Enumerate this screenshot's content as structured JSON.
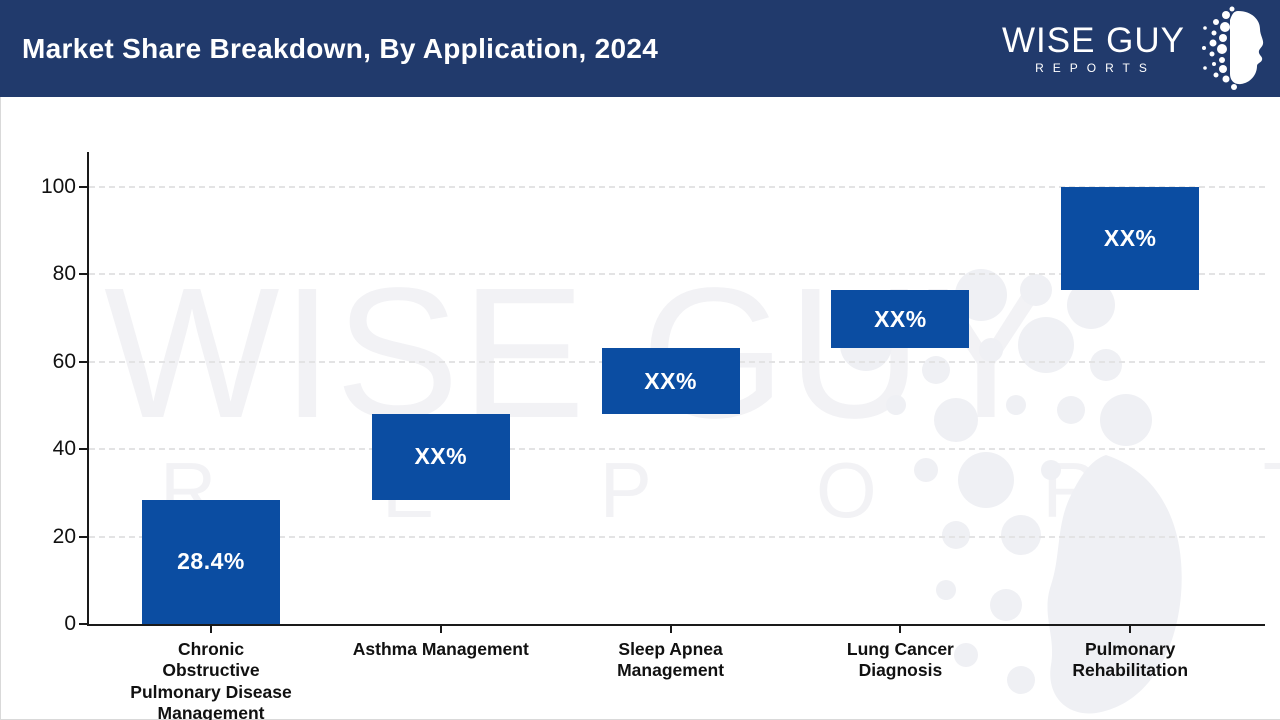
{
  "header": {
    "title": "Market Share Breakdown, By Application, 2024",
    "logo": {
      "line1": "WISE GUY",
      "line2": "REPORTS"
    }
  },
  "watermark": {
    "line1": "WISE GUY",
    "line2": "R E P O R T S"
  },
  "colors": {
    "header_background": "#213a6c",
    "bar_blue": "#0b4da2",
    "axis": "#1a1a1a",
    "gridline": "#e3e3e4",
    "watermark": "#f2f2f5",
    "bar_label_text": "#ffffff",
    "title_text": "#ffffff"
  },
  "chart_data": {
    "type": "bar",
    "subtype": "waterfall",
    "title": "Market Share Breakdown, By Application, 2024",
    "xlabel": "",
    "ylabel": "",
    "ylim": [
      0,
      100
    ],
    "yticks": [
      0,
      20,
      40,
      60,
      80,
      100
    ],
    "grid": "horizontal-dashed",
    "legend": "none",
    "bar_color": "#0b4da2",
    "categories": [
      "Chronic Obstructive Pulmonary Disease Management",
      "Asthma Management",
      "Sleep Apnea Management",
      "Lung Cancer Diagnosis",
      "Pulmonary Rehabilitation"
    ],
    "segments": [
      {
        "category": "Chronic Obstructive Pulmonary Disease Management",
        "category_display": "Chronic\nObstructive\nPulmonary Disease\nManagement",
        "start": 0,
        "end": 28.4,
        "value_label": "28.4%"
      },
      {
        "category": "Asthma Management",
        "category_display": "Asthma Management",
        "start": 28.4,
        "end": 48,
        "value_label": "XX%"
      },
      {
        "category": "Sleep Apnea Management",
        "category_display": "Sleep Apnea\nManagement",
        "start": 48,
        "end": 63,
        "value_label": "XX%"
      },
      {
        "category": "Lung Cancer Diagnosis",
        "category_display": "Lung Cancer\nDiagnosis",
        "start": 63,
        "end": 76.3,
        "value_label": "XX%"
      },
      {
        "category": "Pulmonary Rehabilitation",
        "category_display": "Pulmonary\nRehabilitation",
        "start": 76.3,
        "end": 100,
        "value_label": "XX%"
      }
    ]
  }
}
